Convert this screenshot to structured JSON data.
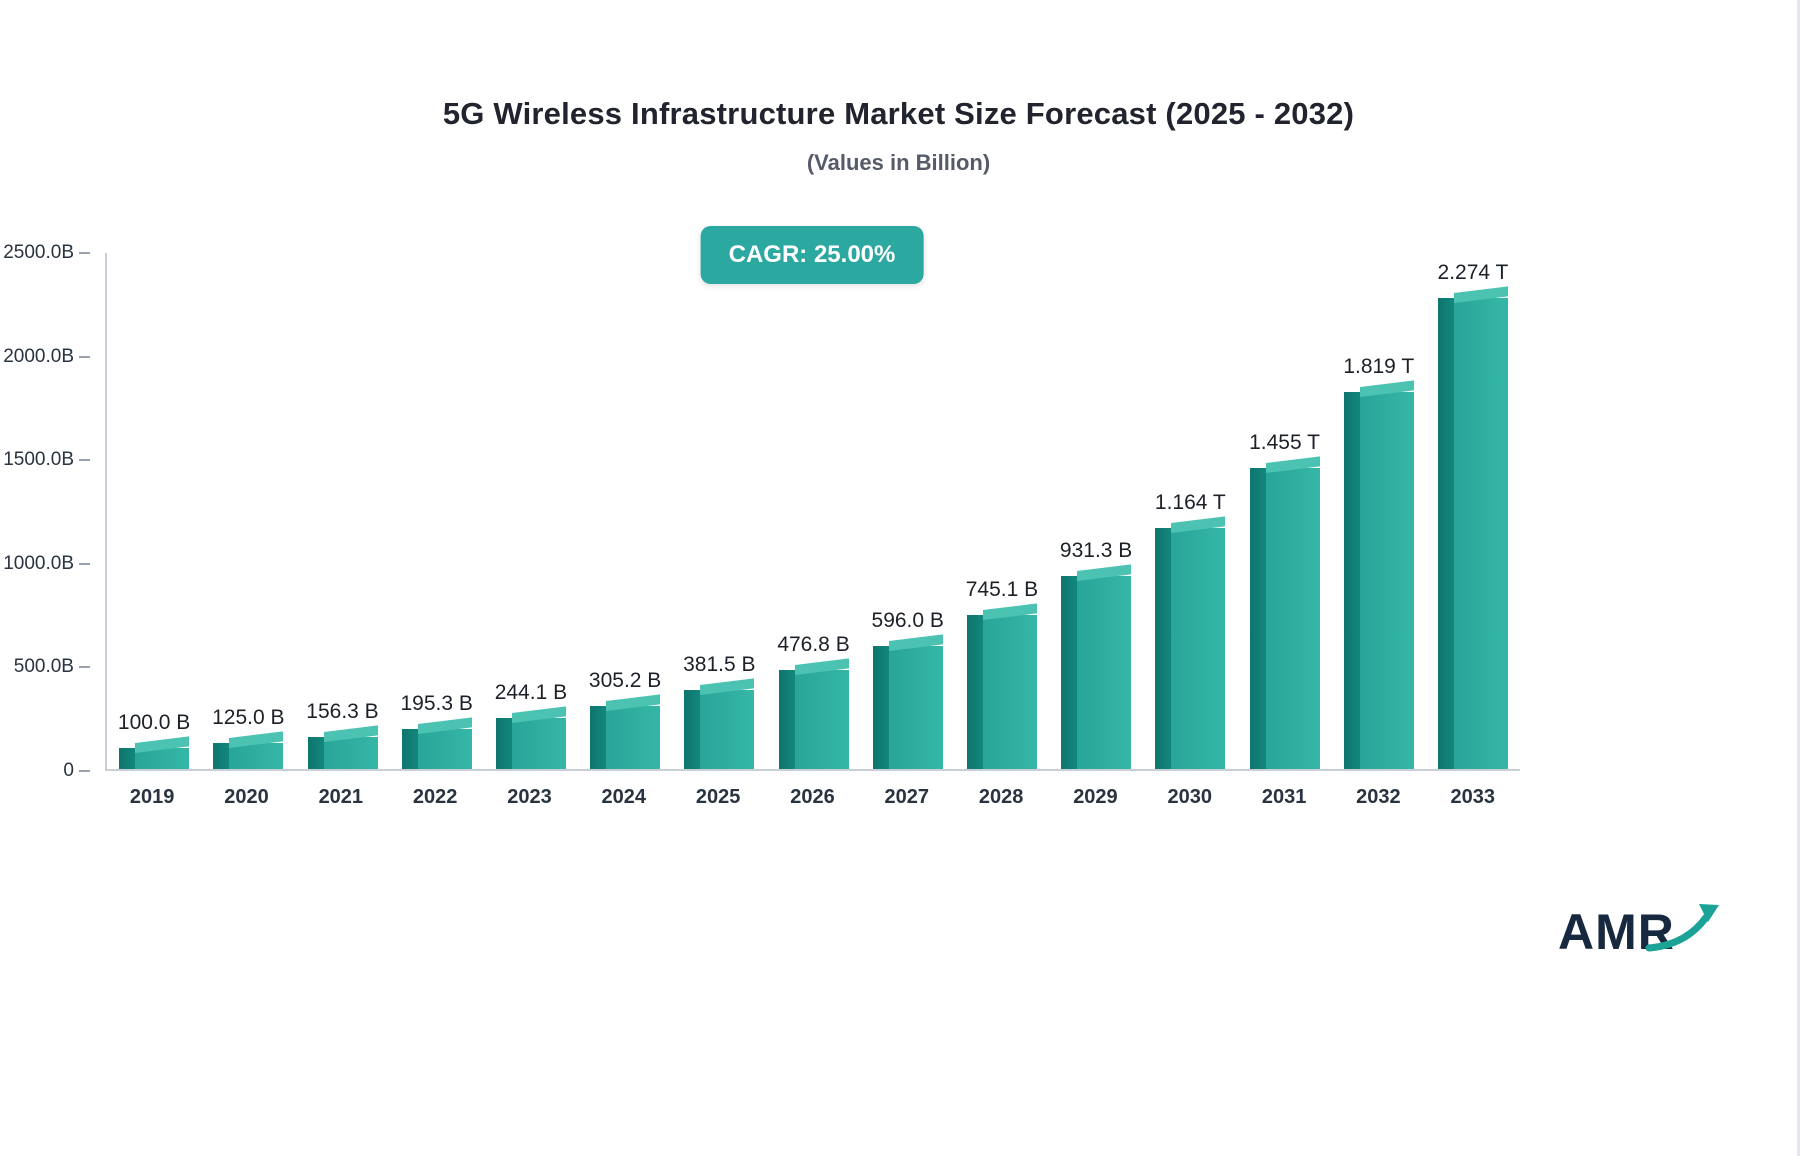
{
  "header": {
    "title": "5G Wireless Infrastructure Market Size Forecast (2025 - 2032)",
    "subtitle": "(Values in Billion)",
    "cagr_badge": "CAGR: 25.00%",
    "badge_color": "#2BA9A1"
  },
  "chart_data": {
    "type": "bar",
    "title": "5G Wireless Infrastructure Market Size Forecast (2025 - 2032)",
    "subtitle": "(Values in Billion)",
    "annotation": "CAGR: 25.00%",
    "categories": [
      "2019",
      "2020",
      "2021",
      "2022",
      "2023",
      "2024",
      "2025",
      "2026",
      "2027",
      "2028",
      "2029",
      "2030",
      "2031",
      "2032",
      "2033"
    ],
    "values_billion": [
      100.0,
      125.0,
      156.3,
      195.3,
      244.1,
      305.2,
      381.5,
      476.8,
      596.0,
      745.1,
      931.3,
      1164,
      1455,
      1819,
      2274
    ],
    "value_labels": [
      "100.0 B",
      "125.0 B",
      "156.3 B",
      "195.3 B",
      "244.1 B",
      "305.2 B",
      "381.5 B",
      "476.8 B",
      "596.0 B",
      "745.1 B",
      "931.3 B",
      "1.164 T",
      "1.455 T",
      "1.819 T",
      "2.274 T"
    ],
    "y_ticks": [
      "2500.0B",
      "2000.0B",
      "1500.0B",
      "1000.0B",
      "500.0B",
      "0"
    ],
    "ylim": [
      0,
      2500
    ],
    "xlabel": "",
    "ylabel": "",
    "grid": false,
    "legend": "none",
    "bar_colors": {
      "front": "#2FAE9F",
      "side": "#0F7D74",
      "top": "#4CC3B2"
    }
  },
  "footer": {
    "logo_text": "AMR",
    "logo_arrow_color": "#1AA396"
  }
}
